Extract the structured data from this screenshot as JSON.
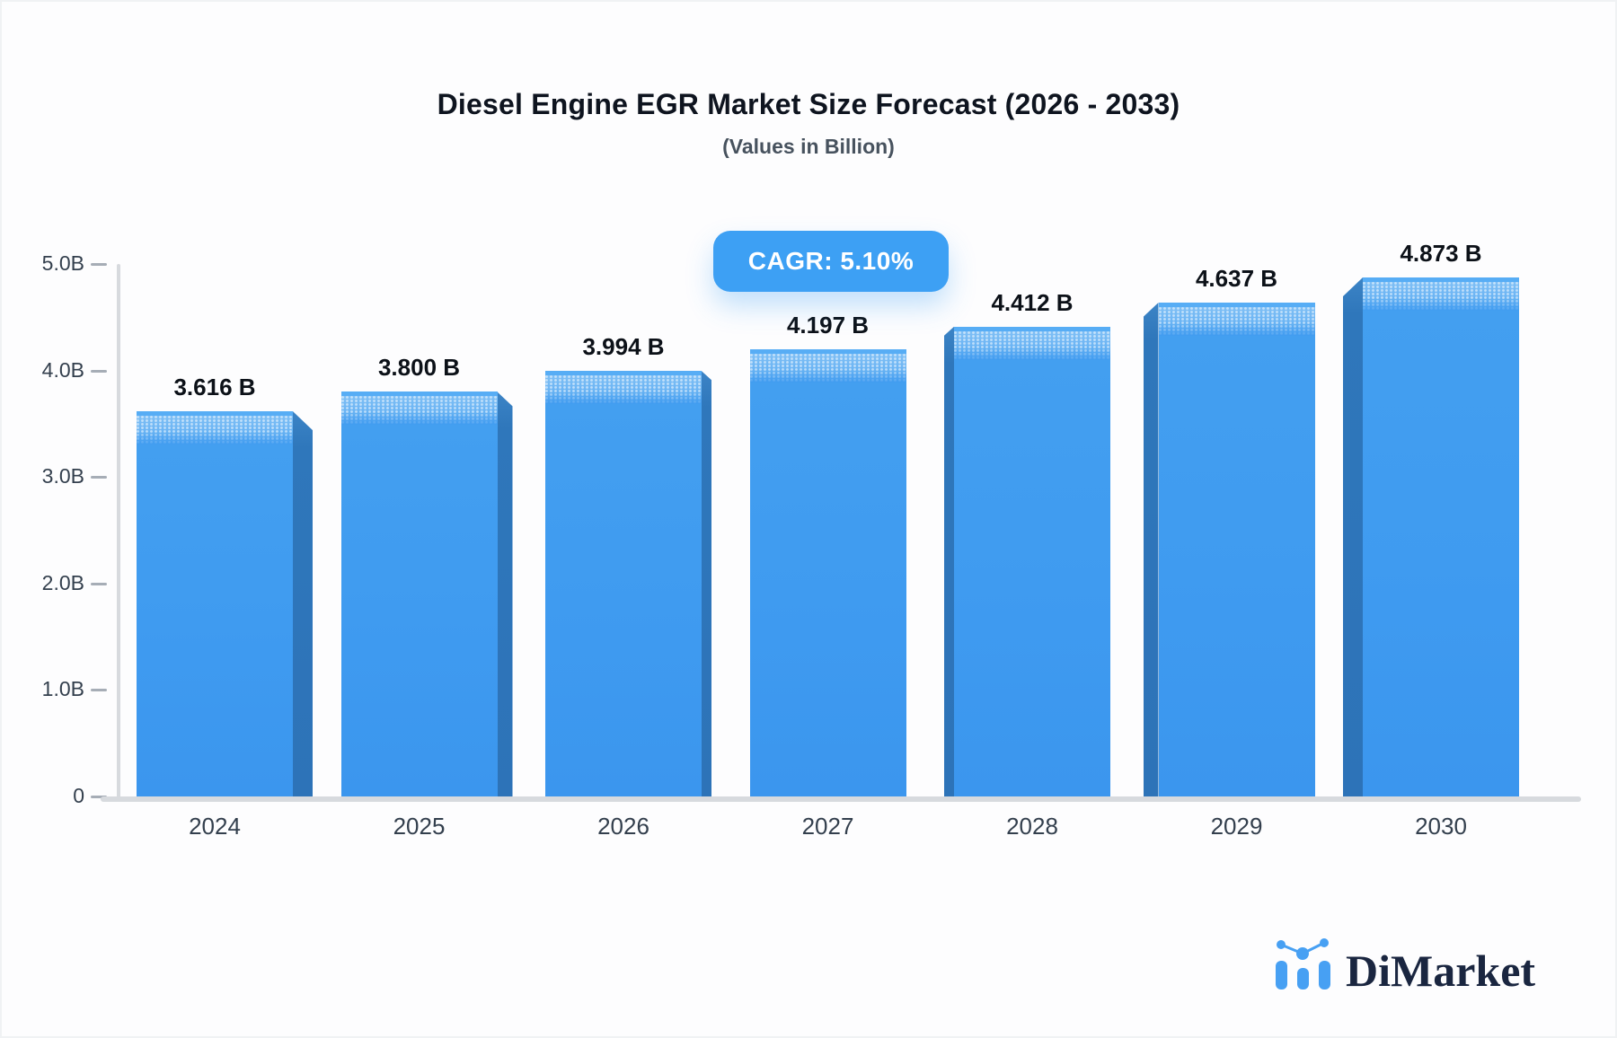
{
  "chart_data": {
    "type": "bar",
    "title": "Diesel Engine EGR Market Size Forecast (2026 - 2033)",
    "subtitle": "(Values in Billion)",
    "cagr_label": "CAGR: 5.10%",
    "categories": [
      "2024",
      "2025",
      "2026",
      "2027",
      "2028",
      "2029",
      "2030"
    ],
    "values": [
      3.616,
      3.8,
      3.994,
      4.197,
      4.412,
      4.637,
      4.873
    ],
    "bar_labels": [
      "3.616 B",
      "3.800 B",
      "3.994 B",
      "4.197 B",
      "4.412 B",
      "4.637 B",
      "4.873 B"
    ],
    "xlabel": "",
    "ylabel": "",
    "ylim": [
      0,
      5
    ],
    "yticks": [
      {
        "value": 5,
        "label": "5.0B"
      },
      {
        "value": 4,
        "label": "4.0B"
      },
      {
        "value": 3,
        "label": "3.0B"
      },
      {
        "value": 2,
        "label": "2.0B"
      },
      {
        "value": 1,
        "label": "1.0B"
      },
      {
        "value": 0,
        "label": "0"
      }
    ],
    "grid": false,
    "legend": false
  },
  "logo": {
    "name": "DiMarket",
    "icon": "bar-chart-line-icon"
  },
  "colors": {
    "bar_face": "#3f9bf0",
    "bar_face_light": "#55abf3",
    "bar_side": "#2e77bc",
    "badge_bg": "#3da0f4",
    "badge_text": "#ffffff",
    "axis_line": "#d7dade",
    "tick_mark": "#a6adb6",
    "title_text": "#0e141f",
    "subtitle_text": "#47525e",
    "axis_label": "#333f4d",
    "value_label": "#0c1118",
    "logo_text": "#1a2640",
    "logo_icon": "#47a0f3"
  }
}
